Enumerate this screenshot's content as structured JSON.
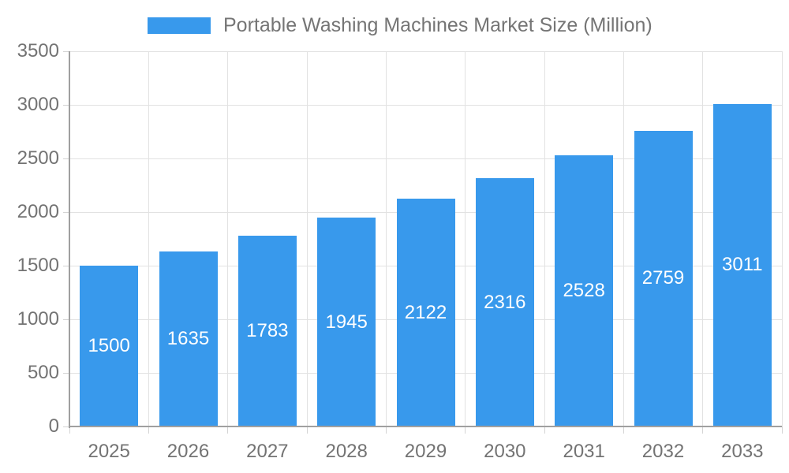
{
  "chart_data": {
    "type": "bar",
    "title": "Portable Washing Machines Market Size (Million)",
    "legend_label": "Portable Washing Machines Market Size (Million)",
    "legend_position": "top",
    "categories": [
      "2025",
      "2026",
      "2027",
      "2028",
      "2029",
      "2030",
      "2031",
      "2032",
      "2033"
    ],
    "values": [
      1500,
      1635,
      1783,
      1945,
      2122,
      2316,
      2528,
      2759,
      3011
    ],
    "xlabel": "",
    "ylabel": "",
    "ylim": [
      0,
      3500
    ],
    "ytick_step": 500,
    "yticks": [
      0,
      500,
      1000,
      1500,
      2000,
      2500,
      3000,
      3500
    ],
    "grid": true,
    "value_labels_shown": true
  },
  "style": {
    "bar_color": "#3899EC",
    "value_label_color": "#FFFFFF",
    "axis_color": "#A0A0A0",
    "gridline_color": "#E2E2E2",
    "tick_mark_color": "#D4D4D4",
    "tick_label_color": "#737373",
    "legend_text_color": "#757575",
    "background_color": "#FFFFFF"
  }
}
